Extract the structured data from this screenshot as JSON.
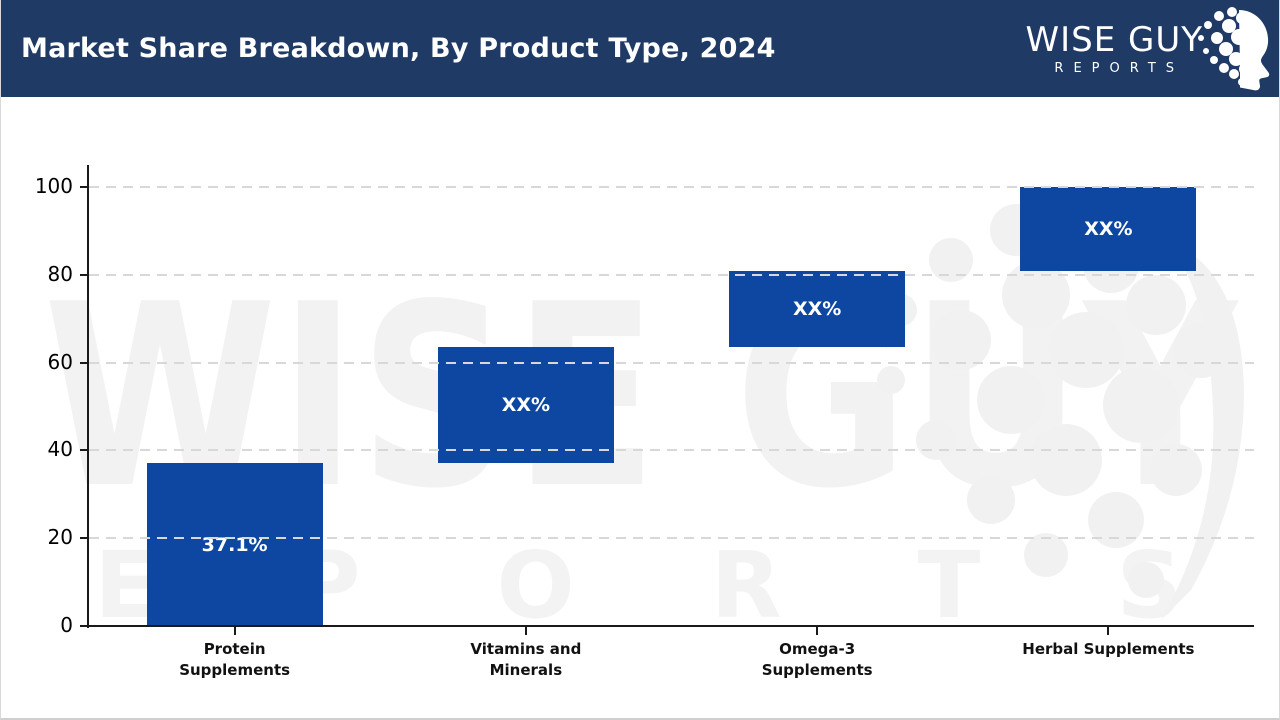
{
  "header": {
    "title": "Market Share Breakdown, By Product Type, 2024",
    "bg_color": "#203a66",
    "logo": {
      "wordmark": "WISE GUY",
      "subtext": "REPORTS"
    }
  },
  "watermark": {
    "line1": "WISE GUY",
    "line2": "R E P O R T S"
  },
  "chart_data": {
    "type": "bar",
    "subtype": "waterfall",
    "title": "Market Share Breakdown, By Product Type, 2024",
    "xlabel": "",
    "ylabel": "",
    "ylim": [
      0,
      100
    ],
    "yticks": [
      0,
      20,
      40,
      60,
      80,
      100
    ],
    "grid": "horizontal dashed, drawn over bars",
    "legend": "none",
    "bar_color": "#0d47a1",
    "bar_label_color": "#ffffff",
    "categories": [
      "Protein Supplements",
      "Vitamins and Minerals",
      "Omega-3 Supplements",
      "Herbal Supplements"
    ],
    "category_lines": [
      [
        "Protein",
        "Supplements"
      ],
      [
        "Vitamins and",
        "Minerals"
      ],
      [
        "Omega-3",
        "Supplements"
      ],
      [
        "Herbal Supplements"
      ]
    ],
    "segments": [
      {
        "category": "Protein Supplements",
        "start": 0,
        "end": 37.1,
        "label": "37.1%"
      },
      {
        "category": "Vitamins and Minerals",
        "start": 37.1,
        "end": 63.5,
        "label": "XX%"
      },
      {
        "category": "Omega-3 Supplements",
        "start": 63.5,
        "end": 80.9,
        "label": "XX%"
      },
      {
        "category": "Herbal Supplements",
        "start": 80.9,
        "end": 100,
        "label": "XX%"
      }
    ]
  },
  "colors": {
    "header_bg": "#203a66",
    "bar": "#0d47a1",
    "grid": "#d8d8d8",
    "axis": "#1a1a1a",
    "watermark": "#f2f2f3"
  }
}
